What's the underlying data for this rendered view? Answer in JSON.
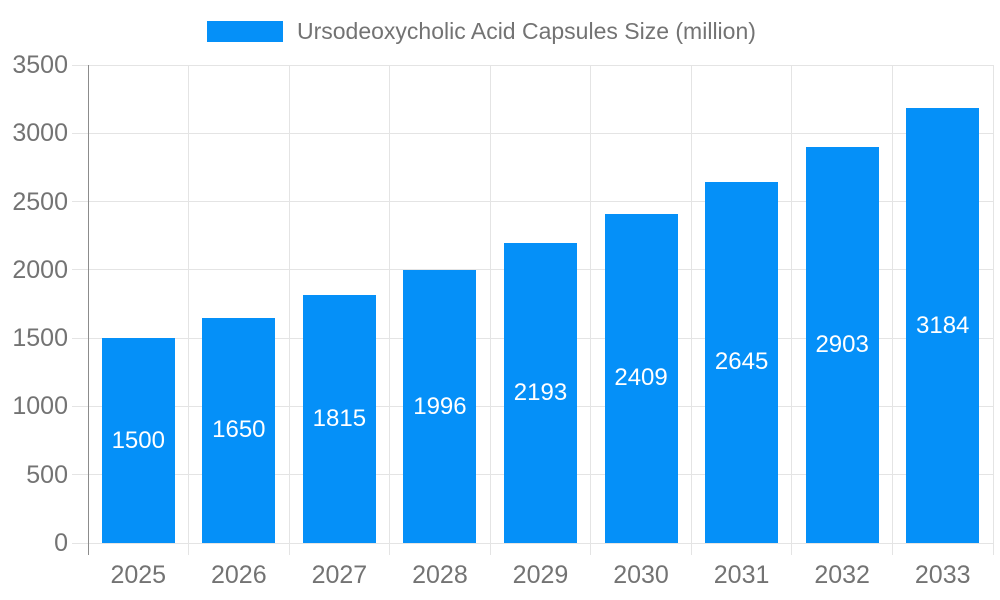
{
  "chart_data": {
    "type": "bar",
    "title": "Ursodeoxycholic Acid Capsules Size (million)",
    "series_name": "Ursodeoxycholic Acid Capsules Size (million)",
    "categories": [
      "2025",
      "2026",
      "2027",
      "2028",
      "2029",
      "2030",
      "2031",
      "2032",
      "2033"
    ],
    "values": [
      1500,
      1650,
      1815,
      1996,
      2193,
      2409,
      2645,
      2903,
      3184
    ],
    "xlabel": "",
    "ylabel": "",
    "ylim": [
      0,
      3500
    ],
    "yticks": [
      0,
      500,
      1000,
      1500,
      2000,
      2500,
      3000,
      3500
    ],
    "grid": true,
    "legend_position": "top",
    "colors": {
      "bar": "#0590f8",
      "grid_line": "#e4e4e4",
      "axis_line": "#8c8c8c",
      "tick_text": "#737373",
      "value_text": "#ffffff",
      "background": "#ffffff"
    }
  }
}
